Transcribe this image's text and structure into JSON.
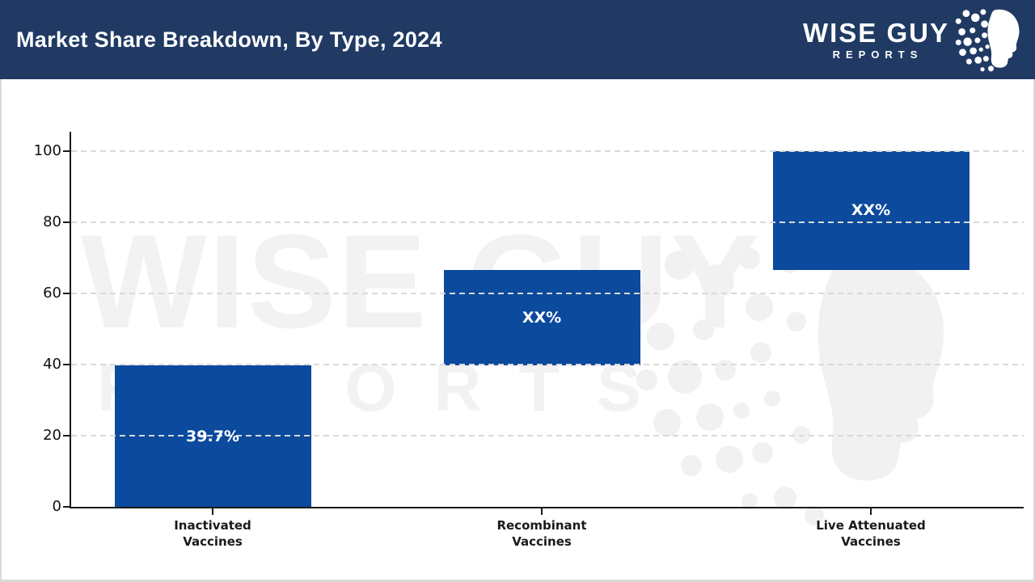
{
  "header": {
    "title": "Market Share Breakdown, By Type, 2024",
    "bg_color": "#203a64",
    "logo": {
      "line1": "WISE GUY",
      "line2": "REPORTS"
    }
  },
  "watermark": {
    "line1": "WISE GUY",
    "line2": "REPORTS",
    "color": "#f2f2f2"
  },
  "chart_data": {
    "type": "bar",
    "subtype": "waterfall",
    "title": "Market Share Breakdown, By Type, 2024",
    "categories": [
      "Inactivated Vaccines",
      "Recombinant Vaccines",
      "Live Attenuated Vaccines"
    ],
    "category_label_lines": [
      [
        "Inactivated",
        "Vaccines"
      ],
      [
        "Recombinant",
        "Vaccines"
      ],
      [
        "Live Attenuated",
        "Vaccines"
      ]
    ],
    "segments": [
      {
        "category": "Inactivated Vaccines",
        "start": 0,
        "end": 39.7,
        "label": "39.7%"
      },
      {
        "category": "Recombinant Vaccines",
        "start": 39.7,
        "end": 66.7,
        "label": "XX%"
      },
      {
        "category": "Live Attenuated Vaccines",
        "start": 66.7,
        "end": 100,
        "label": "XX%"
      }
    ],
    "yticks": [
      0,
      20,
      40,
      60,
      80,
      100
    ],
    "ylim": [
      0,
      100
    ],
    "grid": "horizontal-dashed",
    "legend": "none",
    "bar_color": "#0b4a9d",
    "bar_label_color": "#ffffff",
    "grid_color": "#d9d9d9",
    "axis_color": "#1a1a1a"
  }
}
